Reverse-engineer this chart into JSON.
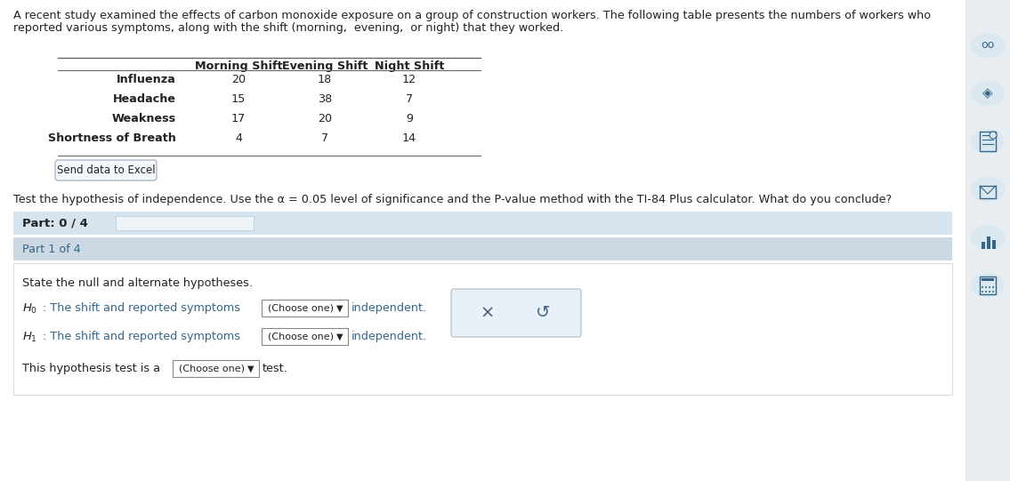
{
  "intro_line1": "A recent study examined the effects of carbon monoxide exposure on a group of construction workers. The following table presents the numbers of workers who",
  "intro_line2": "reported various symptoms, along with the shift (morning,  evening,  or night) that they worked.",
  "table_headers": [
    "Morning Shift",
    "Evening Shift",
    "Night Shift"
  ],
  "table_rows": [
    [
      "Influenza",
      "20",
      "18",
      "12"
    ],
    [
      "Headache",
      "15",
      "38",
      "7"
    ],
    [
      "Weakness",
      "17",
      "20",
      "9"
    ],
    [
      "Shortness of Breath",
      "4",
      "7",
      "14"
    ]
  ],
  "send_data_btn": "Send data to Excel",
  "hypothesis_text": "Test the hypothesis of independence. Use the α = 0.05 level of significance and the P-value method with the TI-84 Plus calculator. What do you conclude?",
  "part_label": "Part: 0 / 4",
  "part1_label": "Part 1 of 4",
  "state_hypotheses": "State the null and alternate hypotheses.",
  "h0_prefix": "H₀: The shift and reported symptoms",
  "h0_suffix": "independent.",
  "h1_prefix": "H₁: The shift and reported symptoms",
  "h1_suffix": "independent.",
  "this_hypothesis_prefix": "This hypothesis test is a",
  "this_hypothesis_suffix": "test.",
  "choose_one": "(Choose one)",
  "bg_color": "#ffffff",
  "sidebar_color": "#e8edf2",
  "panel_blue_light": "#d6e4f0",
  "panel_gray": "#ccd9e3",
  "panel_white": "#ffffff",
  "text_dark": "#222222",
  "text_blue": "#336688",
  "text_red": "#cc3333",
  "table_line_color": "#666666",
  "progress_bar_bg": "#dce8f4",
  "btn_box_bg": "#e8f0f8",
  "btn_border": "#aabbcc",
  "dropdown_border": "#888888"
}
